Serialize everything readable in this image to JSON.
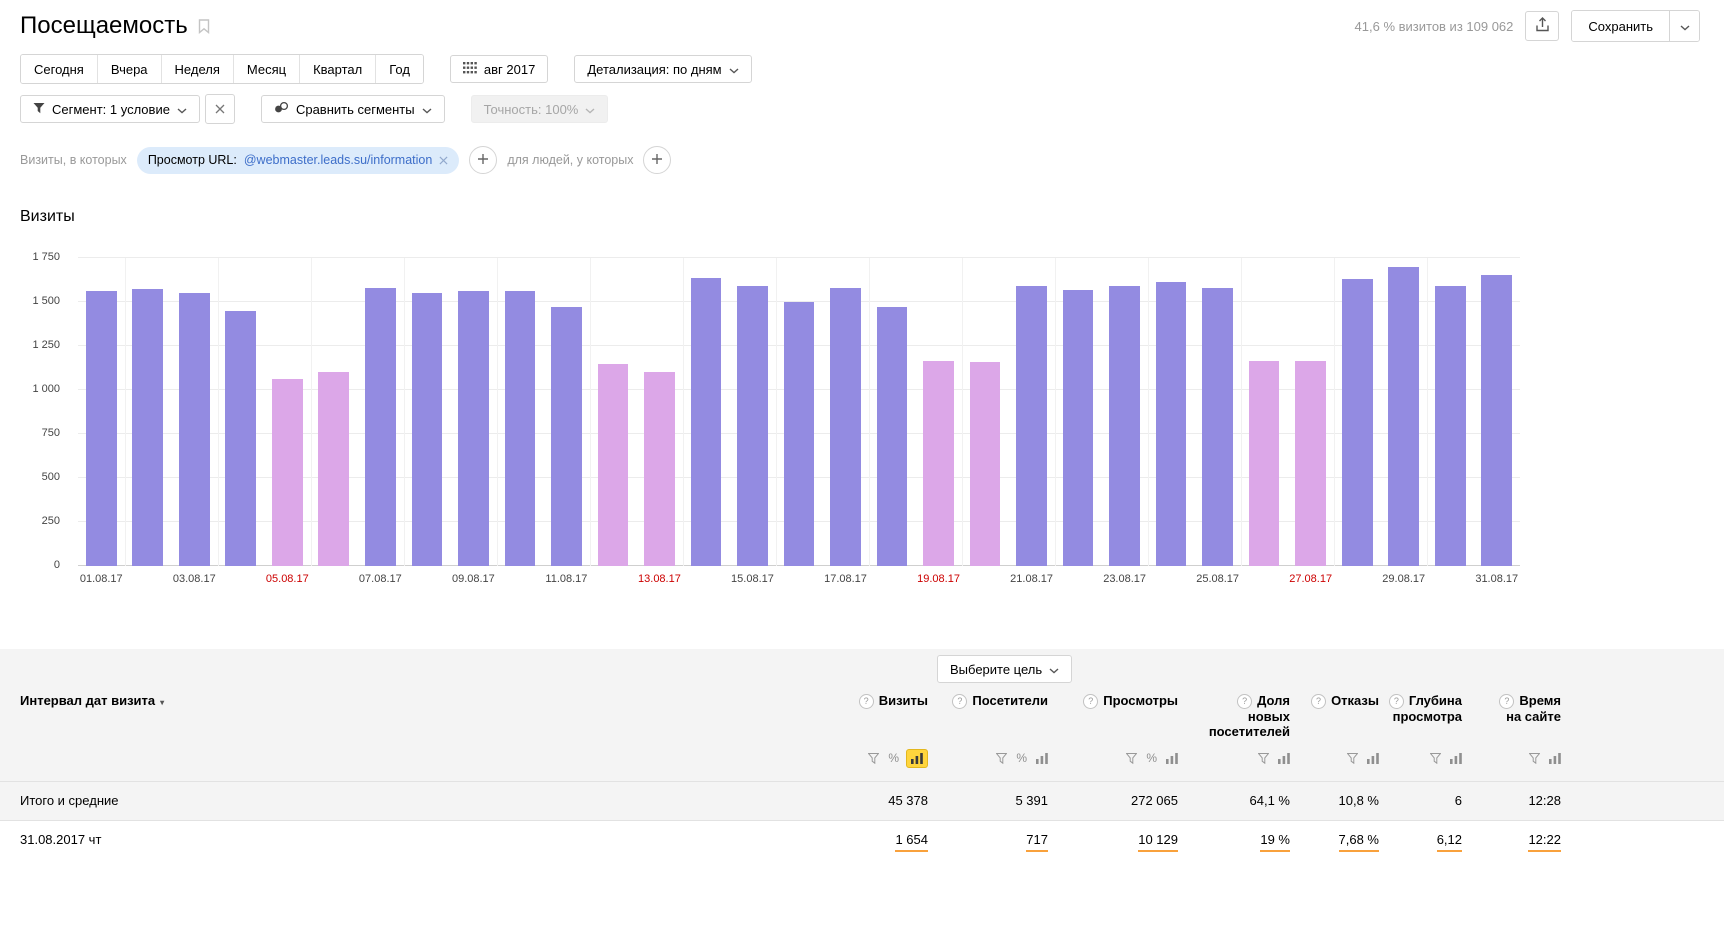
{
  "colors": {
    "weekend_label": "#cc0000",
    "value_underline": "#f9a13c",
    "active_tool_bg": "#ffd53d",
    "chip_bg": "#dcebfb",
    "link_blue": "#3d6ec9"
  },
  "header": {
    "title": "Посещаемость",
    "stats": "41,6 % визитов из 109 062",
    "save_label": "Сохранить"
  },
  "toolbar": {
    "period_buttons": [
      "Сегодня",
      "Вчера",
      "Неделя",
      "Месяц",
      "Квартал",
      "Год"
    ],
    "calendar_label": "авг 2017",
    "detail_label": "Детализация: по дням"
  },
  "segment": {
    "segment_label": "Сегмент: 1 условие",
    "compare_label": "Сравнить сегменты",
    "accuracy_label": "Точность: 100%"
  },
  "filters": {
    "visits_label": "Визиты, в которых",
    "chip_prefix": "Просмотр URL:",
    "chip_value": "@webmaster.leads.su/information",
    "people_label": "для людей, у которых"
  },
  "chart_data": {
    "type": "bar",
    "title": "Визиты",
    "xlabel": "",
    "ylabel": "",
    "ylim": [
      0,
      1750
    ],
    "grid": true,
    "x": [
      "01.08.17",
      "02.08.17",
      "03.08.17",
      "04.08.17",
      "05.08.17",
      "06.08.17",
      "07.08.17",
      "08.08.17",
      "09.08.17",
      "10.08.17",
      "11.08.17",
      "12.08.17",
      "13.08.17",
      "14.08.17",
      "15.08.17",
      "16.08.17",
      "17.08.17",
      "18.08.17",
      "19.08.17",
      "20.08.17",
      "21.08.17",
      "22.08.17",
      "23.08.17",
      "24.08.17",
      "25.08.17",
      "26.08.17",
      "27.08.17",
      "28.08.17",
      "29.08.17",
      "30.08.17",
      "31.08.17"
    ],
    "values": [
      1560,
      1575,
      1550,
      1450,
      1060,
      1100,
      1580,
      1550,
      1565,
      1560,
      1470,
      1145,
      1105,
      1635,
      1590,
      1500,
      1580,
      1470,
      1165,
      1160,
      1590,
      1570,
      1590,
      1615,
      1580,
      1165,
      1165,
      1630,
      1700,
      1590,
      1654
    ],
    "weekend_indices": [
      4,
      5,
      11,
      12,
      18,
      19,
      25,
      26
    ],
    "colors": {
      "weekday": "#938be1",
      "weekend": "#dca7e8"
    },
    "yticks": [
      {
        "value": 0,
        "label": "0"
      },
      {
        "value": 250,
        "label": "250"
      },
      {
        "value": 500,
        "label": "500"
      },
      {
        "value": 750,
        "label": "750"
      },
      {
        "value": 1000,
        "label": "1 000"
      },
      {
        "value": 1250,
        "label": "1 250"
      },
      {
        "value": 1500,
        "label": "1 500"
      },
      {
        "value": 1750,
        "label": "1 750"
      }
    ],
    "x_ticks": [
      {
        "i": 0,
        "label": "01.08.17",
        "red": false
      },
      {
        "i": 2,
        "label": "03.08.17",
        "red": false
      },
      {
        "i": 4,
        "label": "05.08.17",
        "red": true
      },
      {
        "i": 6,
        "label": "07.08.17",
        "red": false
      },
      {
        "i": 8,
        "label": "09.08.17",
        "red": false
      },
      {
        "i": 10,
        "label": "11.08.17",
        "red": false
      },
      {
        "i": 12,
        "label": "13.08.17",
        "red": true
      },
      {
        "i": 14,
        "label": "15.08.17",
        "red": false
      },
      {
        "i": 16,
        "label": "17.08.17",
        "red": false
      },
      {
        "i": 18,
        "label": "19.08.17",
        "red": true
      },
      {
        "i": 20,
        "label": "21.08.17",
        "red": false
      },
      {
        "i": 22,
        "label": "23.08.17",
        "red": false
      },
      {
        "i": 24,
        "label": "25.08.17",
        "red": false
      },
      {
        "i": 26,
        "label": "27.08.17",
        "red": true
      },
      {
        "i": 28,
        "label": "29.08.17",
        "red": false
      },
      {
        "i": 30,
        "label": "31.08.17",
        "red": false
      }
    ]
  },
  "table": {
    "goal_button": "Выберите цель",
    "row_header": "Интервал дат визита",
    "columns": [
      {
        "label": "Визиты",
        "tools": [
          "filter",
          "percent",
          "chart"
        ],
        "active": "chart"
      },
      {
        "label": "Посетители",
        "tools": [
          "filter",
          "percent",
          "chart"
        ]
      },
      {
        "label": "Просмотры",
        "tools": [
          "filter",
          "percent",
          "chart"
        ]
      },
      {
        "label": "Доля\nновых\nпосетителей",
        "tools": [
          "filter",
          "chart"
        ]
      },
      {
        "label": "Отказы",
        "tools": [
          "filter",
          "chart"
        ]
      },
      {
        "label": "Глубина\nпросмотра",
        "tools": [
          "filter",
          "chart"
        ]
      },
      {
        "label": "Время\nна сайте",
        "tools": [
          "filter",
          "chart"
        ]
      }
    ],
    "totals_row": {
      "label": "Итого и средние",
      "values": [
        "45 378",
        "5 391",
        "272 065",
        "64,1 %",
        "10,8 %",
        "6",
        "12:28"
      ]
    },
    "rows": [
      {
        "label": "31.08.2017 чт",
        "values": [
          "1 654",
          "717",
          "10 129",
          "19 %",
          "7,68 %",
          "6,12",
          "12:22"
        ]
      }
    ]
  }
}
